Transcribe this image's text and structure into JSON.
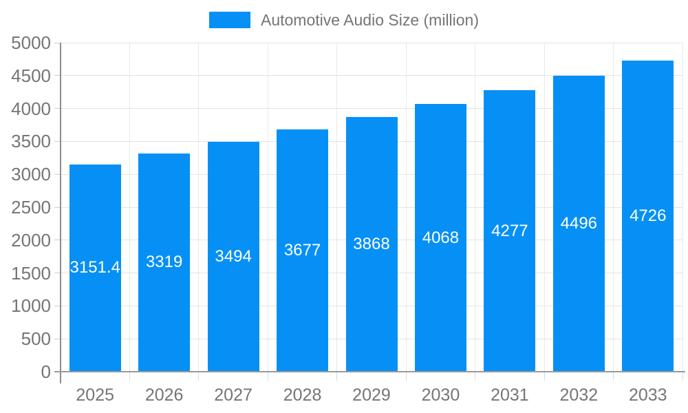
{
  "legend": {
    "label": "Automotive Audio Size (million)"
  },
  "colors": {
    "bar": "#0690f6",
    "grid_h": "#e3e3e3",
    "grid_v": "#e8e8e8",
    "axis": "#8c8c8c",
    "tick_text": "#757575",
    "value_label_text": "#ffffff",
    "background": "#ffffff"
  },
  "chart_data": {
    "type": "bar",
    "title": "Automotive Audio Size (million)",
    "categories": [
      "2025",
      "2026",
      "2027",
      "2028",
      "2029",
      "2030",
      "2031",
      "2032",
      "2033"
    ],
    "values": [
      3151.4,
      3319,
      3494,
      3677,
      3868,
      4068,
      4277,
      4496,
      4726
    ],
    "value_labels": [
      "3151.4",
      "3319",
      "3494",
      "3677",
      "3868",
      "4068",
      "4277",
      "4496",
      "4726"
    ],
    "xlabel": "",
    "ylabel": "",
    "ylim": [
      0,
      5000
    ],
    "yticks": [
      0,
      500,
      1000,
      1500,
      2000,
      2500,
      3000,
      3500,
      4000,
      4500,
      5000
    ],
    "grid": true,
    "legend_position": "top-center",
    "value_label_position": "middle-of-bar"
  }
}
